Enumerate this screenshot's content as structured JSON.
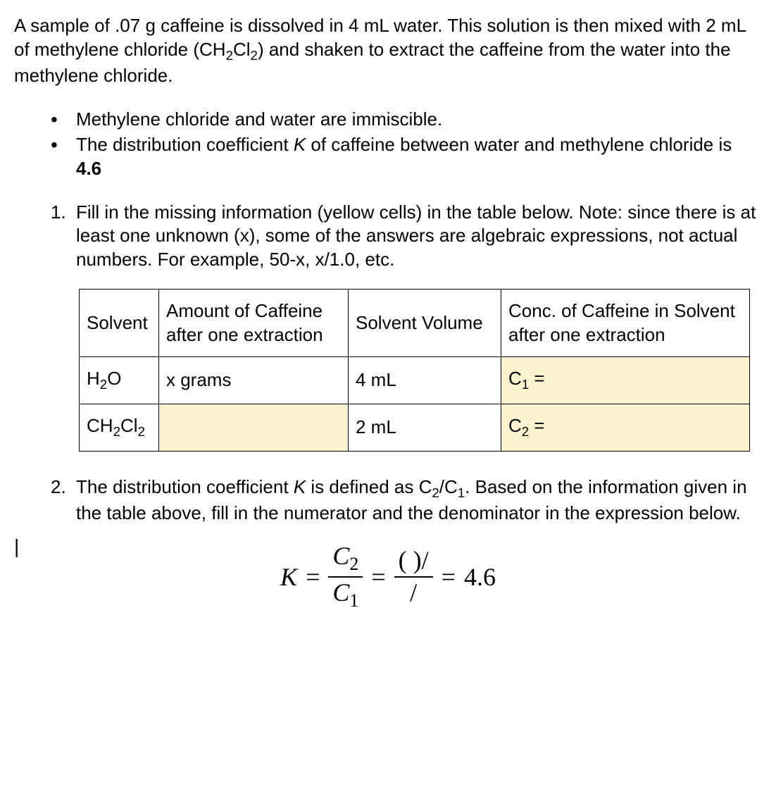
{
  "intro": "A sample of .07 g caffeine is dissolved in 4 mL water. This solution is then mixed with 2 mL of methylene chloride (CH₂Cl₂) and shaken to extract the caffeine from the water into the methylene chloride.",
  "bullets": [
    "Methylene chloride and water are immiscible.",
    "The distribution coefficient K of caffeine between water and methylene chloride is 4.6"
  ],
  "q1": "Fill in the missing information (yellow cells) in the table below. Note: since there is at least one unknown (x), some of the answers are algebraic expressions, not actual numbers. For example, 50-x, x/1.0, etc.",
  "table": {
    "headers": {
      "solvent": "Solvent",
      "amount": "Amount of Caffeine after one extraction",
      "volume": "Solvent Volume",
      "conc": "Conc. of Caffeine in Solvent after one extraction"
    },
    "row1": {
      "solvent": "H₂O",
      "amount": "x grams",
      "volume": "4 mL",
      "conc": "C₁ ="
    },
    "row2": {
      "solvent": "CH₂Cl₂",
      "amount": "",
      "volume": "2 mL",
      "conc": "C₂ ="
    }
  },
  "q2": "The distribution coefficient K is defined as C₂/C₁. Based on the information given in the table above, fill in the numerator and the denominator in the expression below.",
  "equation": {
    "K": "K",
    "eq": "=",
    "frac1_num": "C₂",
    "frac1_den": "C₁",
    "frac2_num": "(  )/",
    "frac2_den": "/",
    "result": "4.6"
  },
  "colors": {
    "highlight": "#fcf2cf",
    "text": "#000000",
    "background": "#ffffff"
  }
}
